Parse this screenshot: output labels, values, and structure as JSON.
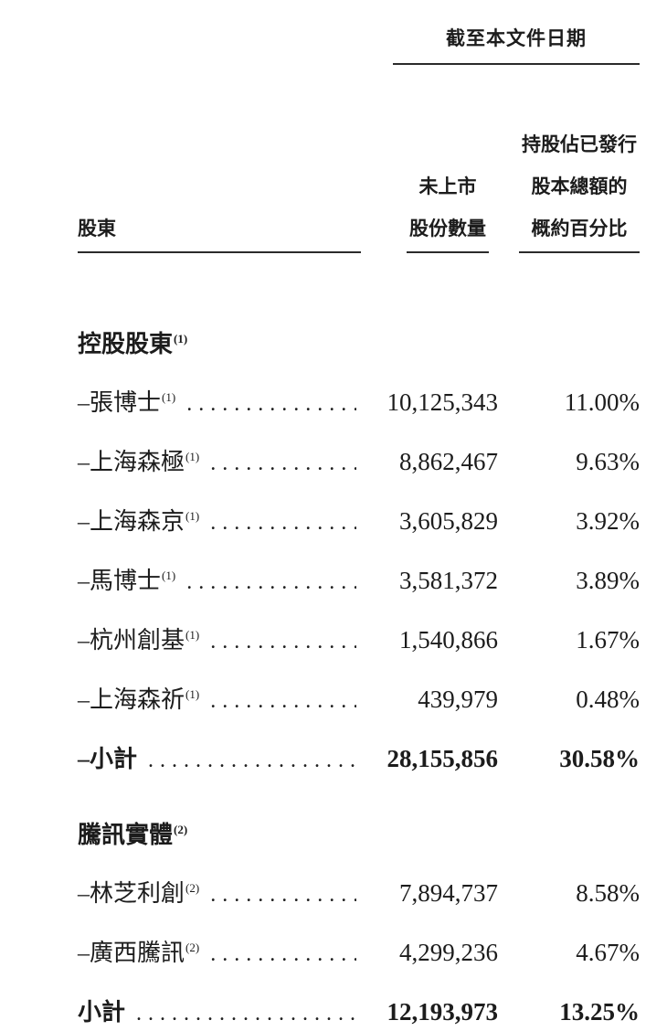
{
  "colors": {
    "text": "#1c1c1c",
    "rule": "#2b2b2b",
    "background": "#ffffff"
  },
  "table": {
    "spanner": "截至本文件日期",
    "leader": "....................................................",
    "columns": {
      "shareholder": "股東",
      "shares": [
        "未上市",
        "股份數量"
      ],
      "percent": [
        "持股佔已發行",
        "股本總額的",
        "概約百分比"
      ]
    },
    "sections": [
      {
        "header": "控股股東",
        "note": "(1)",
        "rows": [
          {
            "prefix": "–",
            "name": "張博士",
            "note": "(1)",
            "shares": "10,125,343",
            "percent": "11.00%"
          },
          {
            "prefix": "–",
            "name": "上海森極",
            "note": "(1)",
            "shares": "8,862,467",
            "percent": "9.63%"
          },
          {
            "prefix": "–",
            "name": "上海森京",
            "note": "(1)",
            "shares": "3,605,829",
            "percent": "3.92%"
          },
          {
            "prefix": "–",
            "name": "馬博士",
            "note": "(1)",
            "shares": "3,581,372",
            "percent": "3.89%"
          },
          {
            "prefix": "–",
            "name": "杭州創基",
            "note": "(1)",
            "shares": "1,540,866",
            "percent": "1.67%"
          },
          {
            "prefix": "–",
            "name": "上海森祈",
            "note": "(1)",
            "shares": "439,979",
            "percent": "0.48%"
          },
          {
            "prefix": "–",
            "name": "小計",
            "note": "",
            "shares": "28,155,856",
            "percent": "30.58%"
          }
        ]
      },
      {
        "header": "騰訊實體",
        "note": "(2)",
        "rows": [
          {
            "prefix": "–",
            "name": "林芝利創",
            "note": "(2)",
            "shares": "7,894,737",
            "percent": "8.58%"
          },
          {
            "prefix": "–",
            "name": "廣西騰訊",
            "note": "(2)",
            "shares": "4,299,236",
            "percent": "4.67%"
          },
          {
            "prefix": "",
            "name": "小計",
            "note": "",
            "shares": "12,193,973",
            "percent": "13.25%"
          }
        ]
      }
    ]
  }
}
